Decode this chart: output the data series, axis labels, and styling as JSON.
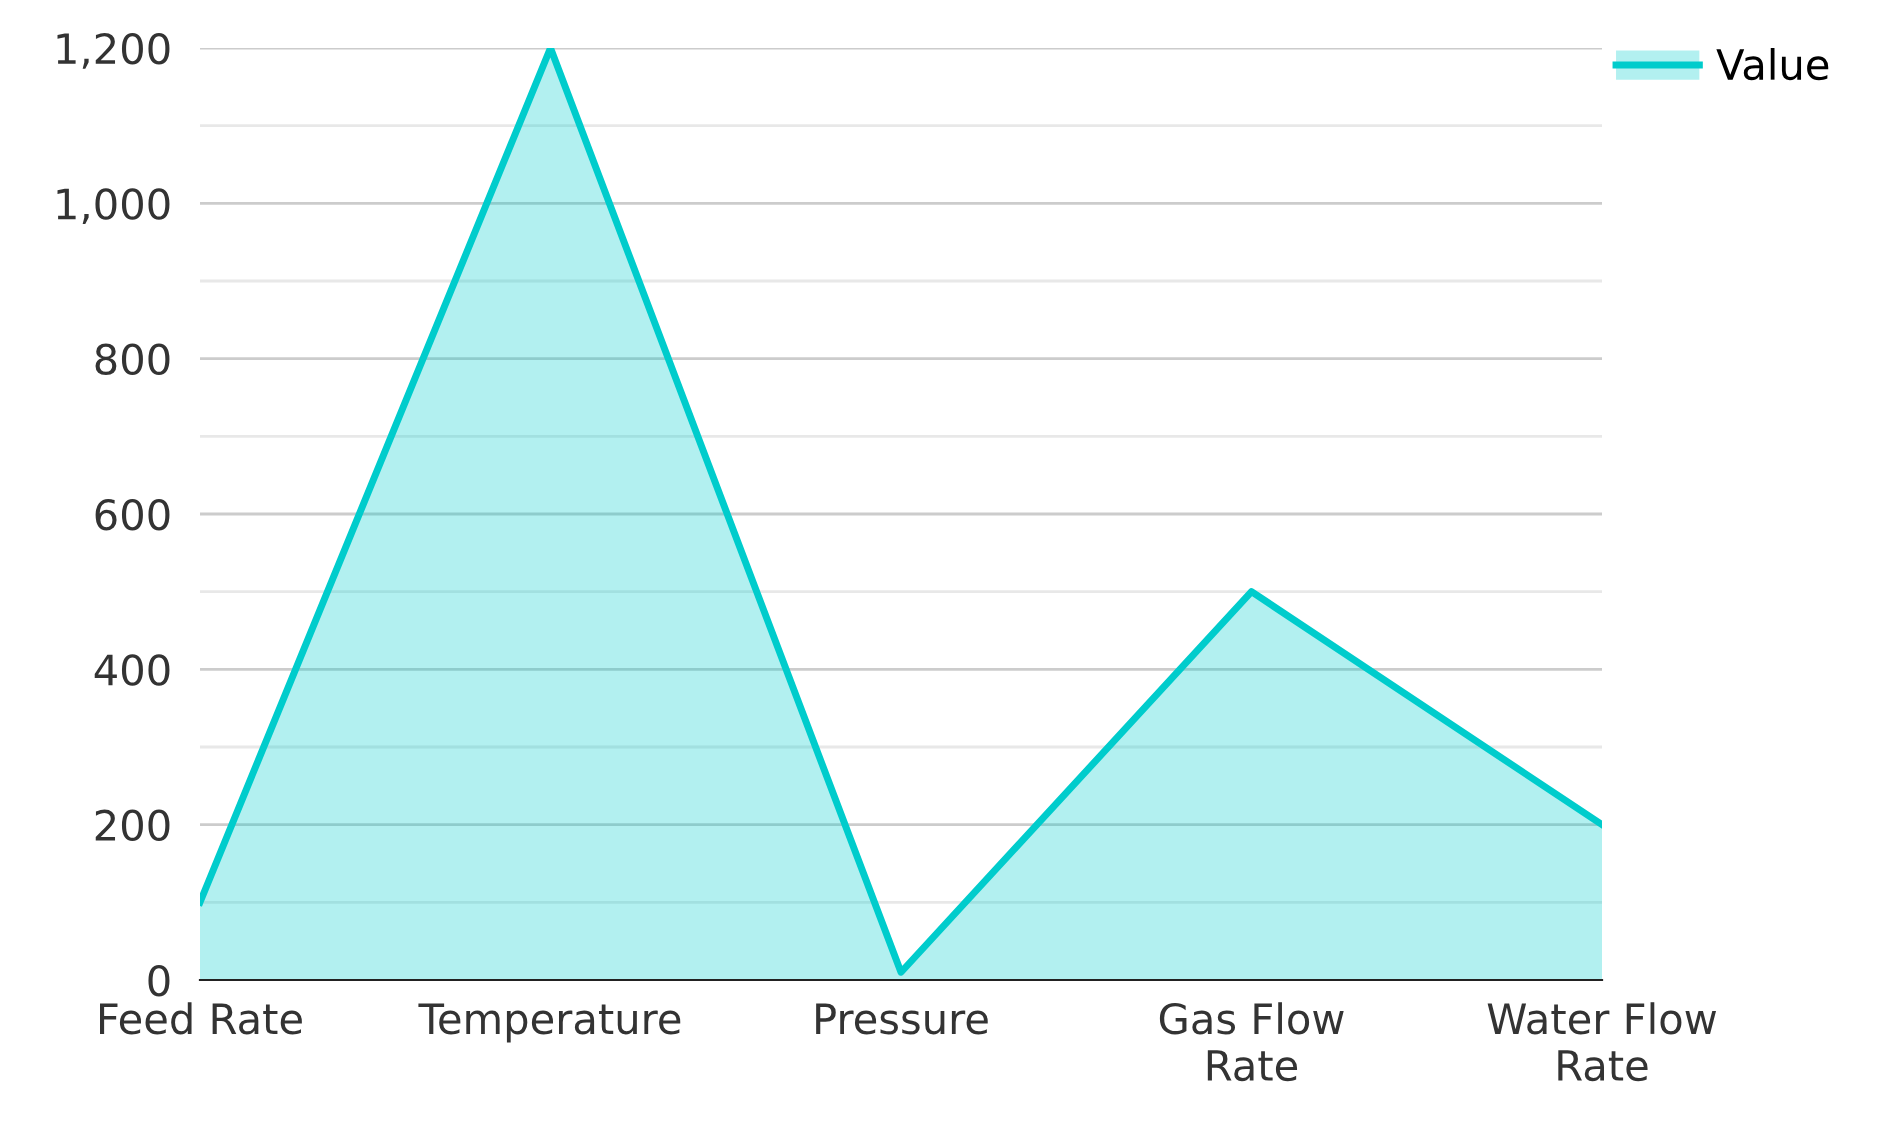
{
  "chart_data": {
    "type": "area",
    "categories": [
      "Feed Rate",
      "Temperature",
      "Pressure",
      "Gas Flow Rate",
      "Water Flow Rate"
    ],
    "series": [
      {
        "name": "Value",
        "color": "#00cccc",
        "values": [
          100,
          1200,
          10,
          500,
          200
        ]
      }
    ],
    "ylim": [
      0,
      1200
    ],
    "yticks": [
      0,
      {
        "value": 100,
        "label": null
      },
      200,
      {
        "value": 300,
        "label": null
      },
      400,
      {
        "value": 500,
        "label": null
      },
      600,
      {
        "value": 700,
        "label": null
      },
      800,
      {
        "value": 900,
        "label": null
      },
      {
        "value": 1000,
        "label": "1,000"
      },
      {
        "value": 1100,
        "label": null
      },
      {
        "value": 1200,
        "label": "1,200"
      }
    ],
    "grid": "y",
    "legend": "top right"
  }
}
